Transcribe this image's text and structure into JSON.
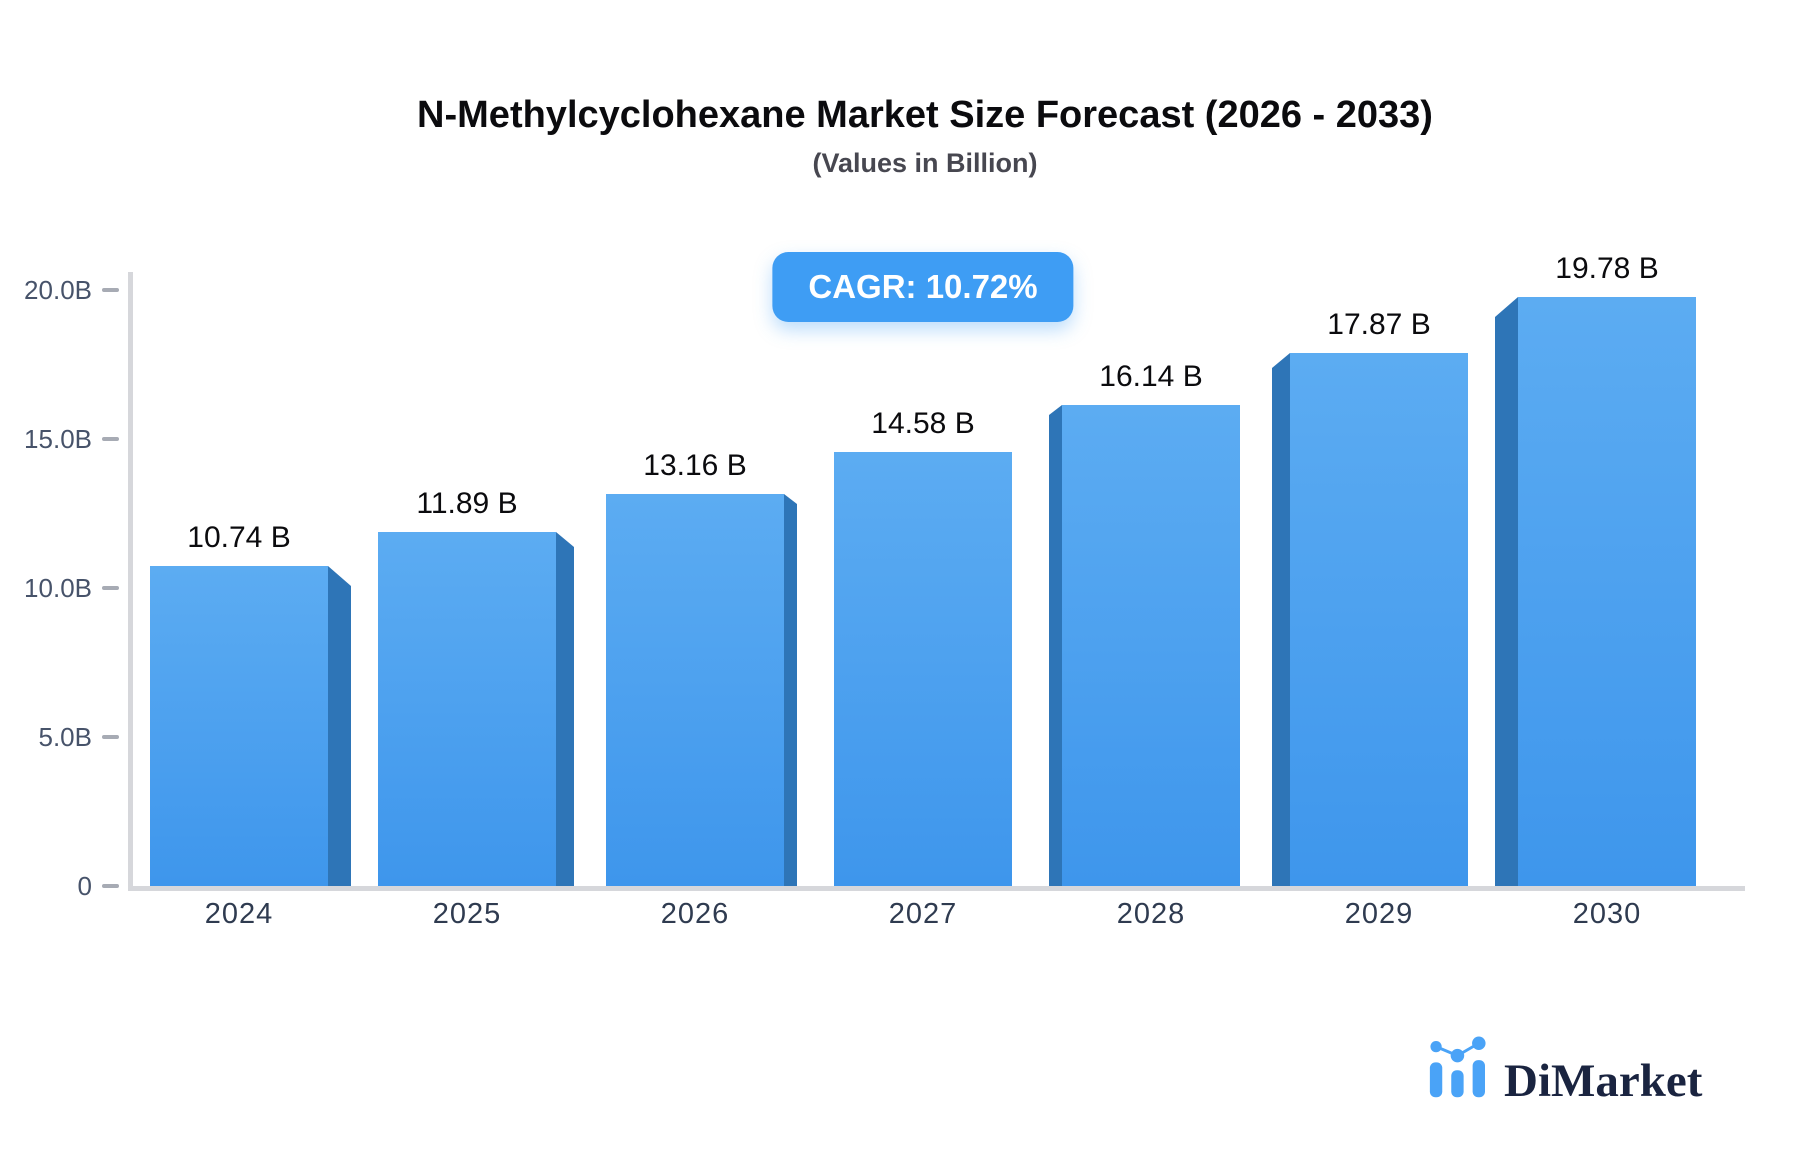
{
  "chart": {
    "title": "N-Methylcyclohexane Market Size Forecast (2026 - 2033)",
    "subtitle": "(Values in Billion)",
    "cagr_badge": "CAGR: 10.72%"
  },
  "chart_data": {
    "type": "bar",
    "title": "N-Methylcyclohexane Market Size Forecast (2026 - 2033)",
    "subtitle": "(Values in Billion)",
    "annotation": "CAGR: 10.72%",
    "categories": [
      "2024",
      "2025",
      "2026",
      "2027",
      "2028",
      "2029",
      "2030"
    ],
    "values": [
      10.74,
      11.89,
      13.16,
      14.58,
      16.14,
      17.87,
      19.78
    ],
    "value_labels": [
      "10.74 B",
      "11.89 B",
      "13.16 B",
      "14.58 B",
      "16.14 B",
      "17.87 B",
      "19.78 B"
    ],
    "y_ticks": [
      {
        "label": "20.0B",
        "value": 20
      },
      {
        "label": "15.0B",
        "value": 15
      },
      {
        "label": "10.0B",
        "value": 10
      },
      {
        "label": "5.0B",
        "value": 5
      },
      {
        "label": "0",
        "value": 0
      }
    ],
    "ylim": [
      0,
      20
    ],
    "xlabel": "",
    "ylabel": "",
    "grid": false,
    "legend": false,
    "colors": {
      "bar_top": "#5cacf2",
      "bar_bottom": "#3e96ec",
      "bar_side": "#2e75b7",
      "axis": "#d6d7db",
      "tick": "#a7abb4",
      "y_label": "#47536a",
      "x_label": "#2f3b50",
      "value_label": "#0b0b0e",
      "badge_bg": "#3e9df4",
      "badge_text": "#ffffff"
    }
  },
  "brand": {
    "name": "DiMarket",
    "logo_color": "#4aa3f7",
    "text_color": "#1a2440"
  }
}
